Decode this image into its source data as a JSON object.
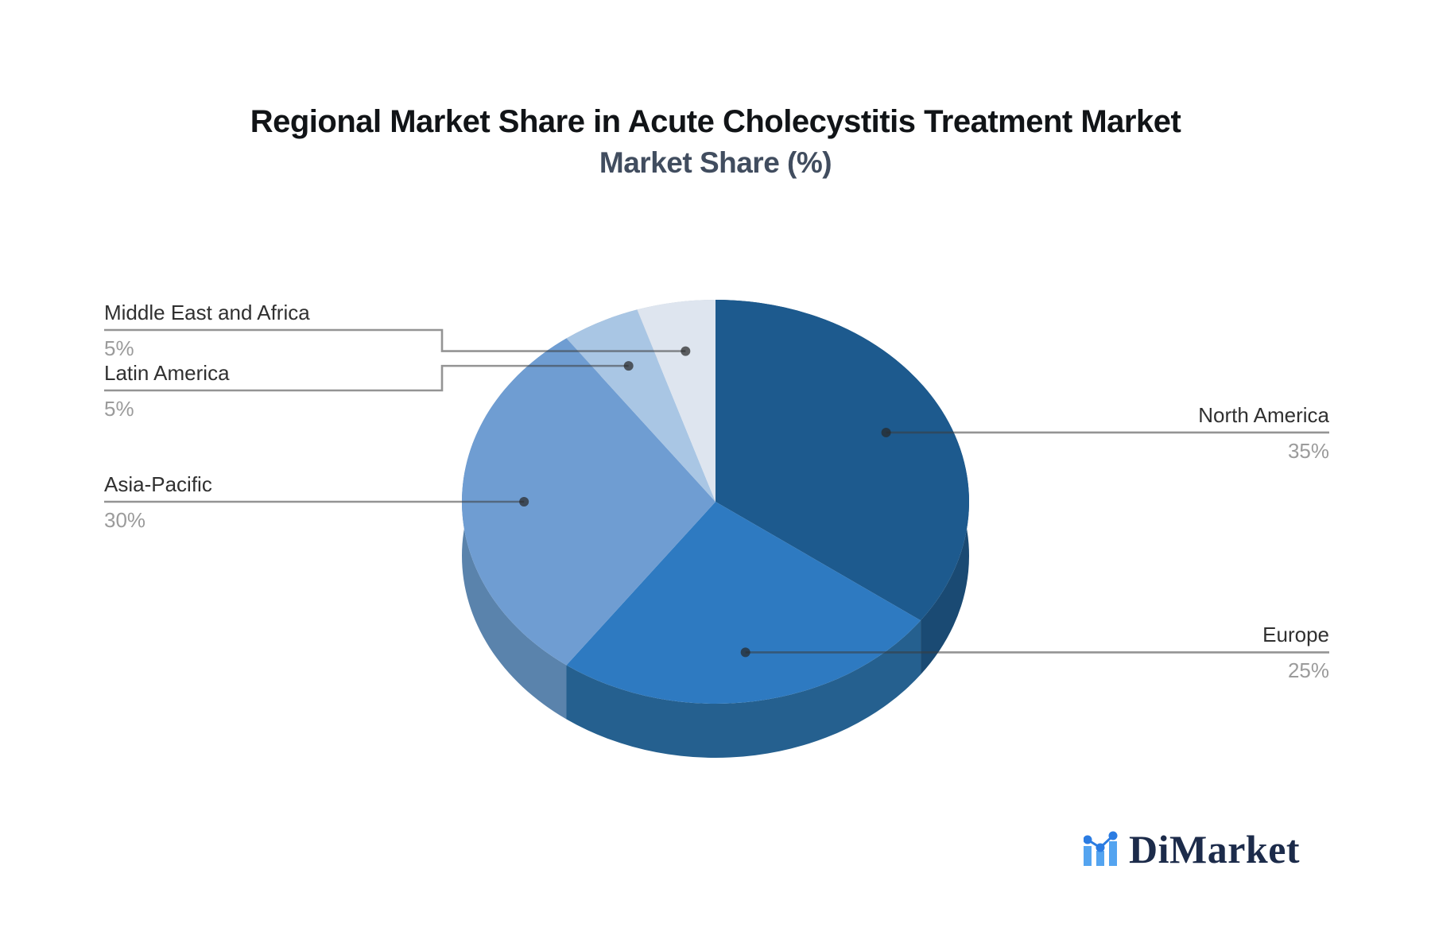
{
  "title": {
    "text": "Regional Market Share in Acute Cholecystitis Treatment Market",
    "subtitle": "Market Share (%)"
  },
  "chart_data": {
    "type": "pie",
    "title": "Regional Market Share in Acute Cholecystitis Treatment Market",
    "subtitle": "Market Share (%)",
    "unit": "%",
    "style": "3d-extruded-pie",
    "start_angle": "12-o'clock",
    "direction": "clockwise",
    "segments": [
      {
        "label": "North America",
        "value": 35,
        "value_label": "35%",
        "color": "#1d5a8e",
        "side_color": "#1a4a73",
        "callout_side": "right"
      },
      {
        "label": "Europe",
        "value": 25,
        "value_label": "25%",
        "color": "#2e7ac1",
        "side_color": "#25608f",
        "callout_side": "right"
      },
      {
        "label": "Asia-Pacific",
        "value": 30,
        "value_label": "30%",
        "color": "#6f9dd2",
        "side_color": "#5a83ac",
        "callout_side": "left"
      },
      {
        "label": "Latin America",
        "value": 5,
        "value_label": "5%",
        "color": "#a9c6e4",
        "side_color": "#8aa7c4",
        "callout_side": "left"
      },
      {
        "label": "Middle East and Africa",
        "value": 5,
        "value_label": "5%",
        "color": "#dee5ef",
        "side_color": "#b8c3d1",
        "callout_side": "left"
      }
    ],
    "leader_line_color": "rgba(60,60,60,0.55)",
    "dot_color": "rgba(40,40,40,0.72)"
  },
  "logo": {
    "text": "DiMarket",
    "icon": "bar-chart-trend-icon",
    "text_color": "#1c2b4a",
    "bar_color": "#54a4f0",
    "dot_color": "#2b7ce2"
  }
}
